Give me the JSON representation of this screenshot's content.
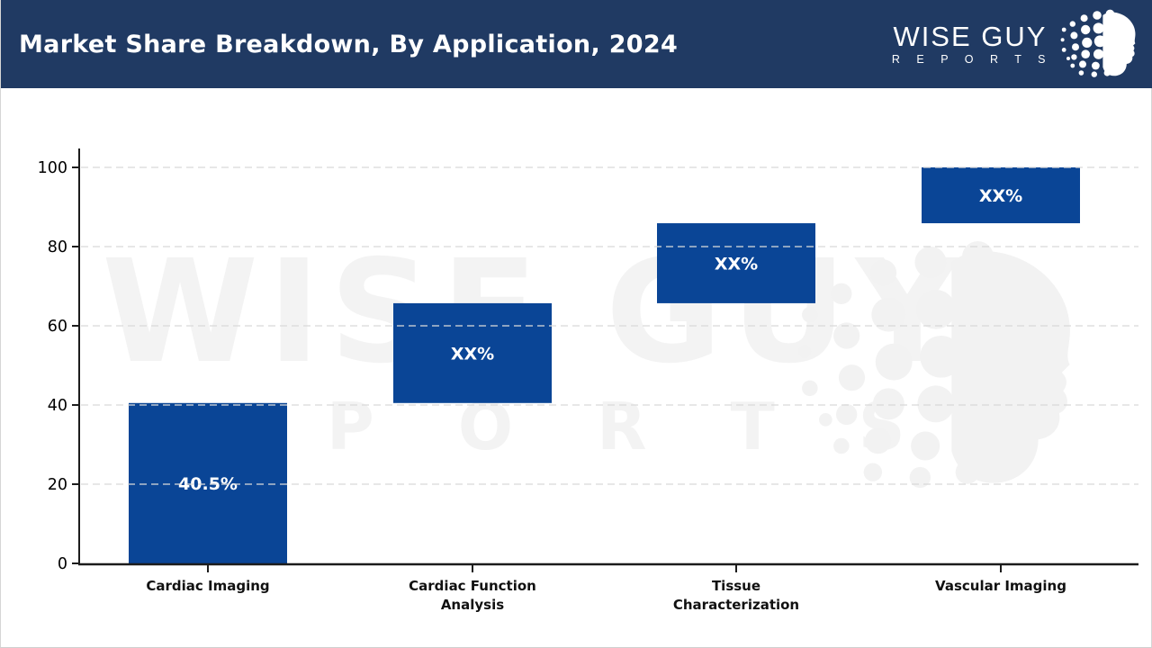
{
  "header": {
    "title": "Market Share Breakdown, By Application, 2024",
    "logo": {
      "wordmark": "WISE GUY",
      "subtext": "R E P O R T S"
    },
    "bg_color": "#203a63"
  },
  "watermark": {
    "line1": "WISE GUY",
    "line2": "P O R T S"
  },
  "chart_data": {
    "type": "bar",
    "subtype": "waterfall",
    "title": "Market Share Breakdown, By Application, 2024",
    "categories": [
      "Cardiac Imaging",
      "Cardiac Function\nAnalysis",
      "Tissue\nCharacterization",
      "Vascular Imaging"
    ],
    "segments": [
      {
        "category": "Cardiac Imaging",
        "start": 0,
        "end": 40.5,
        "label": "40.5%"
      },
      {
        "category": "Cardiac Function\nAnalysis",
        "start": 40.5,
        "end": 65.7,
        "label": "XX%"
      },
      {
        "category": "Tissue\nCharacterization",
        "start": 65.7,
        "end": 85.9,
        "label": "XX%"
      },
      {
        "category": "Vascular Imaging",
        "start": 85.9,
        "end": 100,
        "label": "XX%"
      }
    ],
    "xlabel": "",
    "ylabel": "",
    "ylim": [
      0,
      100
    ],
    "yticks": [
      0,
      20,
      40,
      60,
      80,
      100
    ],
    "grid": "horizontal-dashed",
    "legend": "none",
    "bar_color": "#0a4596",
    "bar_label_color": "#ffffff",
    "grid_color": "#d9d9d9",
    "axis_color": "#1c1c1c"
  }
}
